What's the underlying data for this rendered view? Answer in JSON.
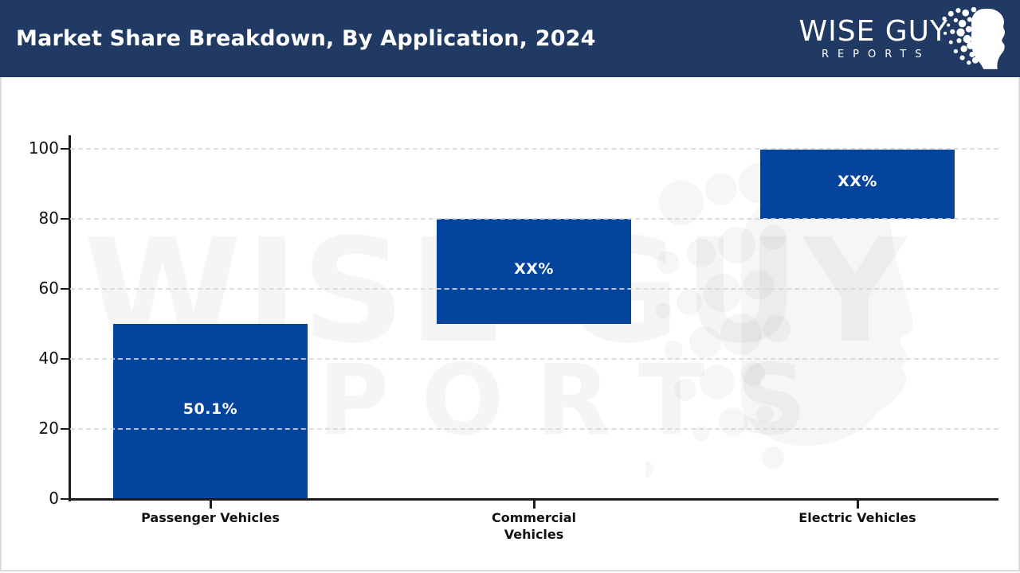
{
  "header": {
    "title": "Market Share Breakdown, By Application, 2024",
    "bg_color": "#213A64",
    "logo": {
      "line1": "WISE GUY",
      "line2": "REPORTS"
    }
  },
  "watermark": {
    "line1": "WISE GUY",
    "line2": "REPORTS"
  },
  "chart_data": {
    "type": "bar",
    "subtype": "floating-segment-breakdown",
    "title": "Market Share Breakdown, By Application, 2024",
    "categories": [
      "Passenger Vehicles",
      "Commercial\nVehicles",
      "Electric Vehicles"
    ],
    "segments": [
      {
        "category": "Passenger Vehicles",
        "start": 0,
        "end": 50.1,
        "label": "50.1%"
      },
      {
        "category": "Commercial Vehicles",
        "start": 50.1,
        "end": 80.1,
        "label": "XX%"
      },
      {
        "category": "Electric Vehicles",
        "start": 80.1,
        "end": 99.8,
        "label": "XX%"
      }
    ],
    "yticks": [
      0,
      20,
      40,
      60,
      80,
      100
    ],
    "ylim": [
      0,
      105
    ],
    "xlabel": "",
    "ylabel": "",
    "grid": "horizontal-dashed",
    "legend": "none",
    "bar_color": "#04449C",
    "bar_label_color": "#FFFFFF",
    "axis_color": "#1c1c1c"
  }
}
